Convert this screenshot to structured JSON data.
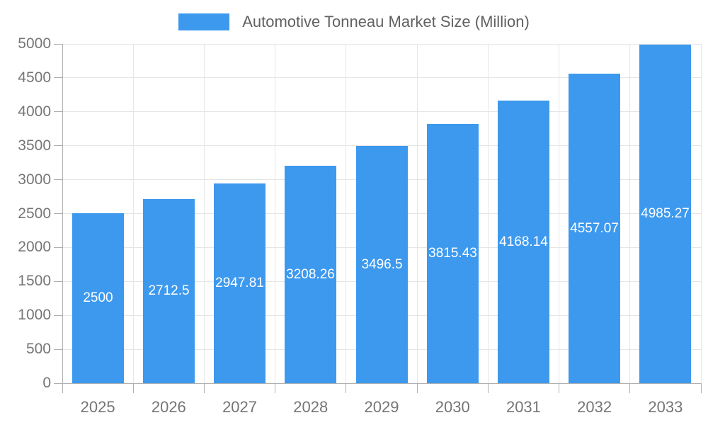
{
  "chart_data": {
    "type": "bar",
    "title": "Automotive Tonneau Market Size (Million)",
    "categories": [
      "2025",
      "2026",
      "2027",
      "2028",
      "2029",
      "2030",
      "2031",
      "2032",
      "2033"
    ],
    "values": [
      2500,
      2712.5,
      2947.81,
      3208.26,
      3496.5,
      3815.43,
      4168.14,
      4557.07,
      4985.27
    ],
    "value_labels": [
      "2500",
      "2712.5",
      "2947.81",
      "3208.26",
      "3496.5",
      "3815.43",
      "4168.14",
      "4557.07",
      "4985.27"
    ],
    "xlabel": "",
    "ylabel": "",
    "ylim": [
      0,
      5000
    ],
    "y_ticks": [
      "0",
      "500",
      "1000",
      "1500",
      "2000",
      "2500",
      "3000",
      "3500",
      "4000",
      "4500",
      "5000"
    ],
    "grid": "on",
    "legend_position": "top",
    "bar_color": "#3d99ee",
    "value_label_color": "#ffffff",
    "axis_color": "#b0b0b0",
    "grid_color": "#e6e6e6",
    "tick_label_color": "#757575",
    "legend_text_color": "#616161"
  }
}
